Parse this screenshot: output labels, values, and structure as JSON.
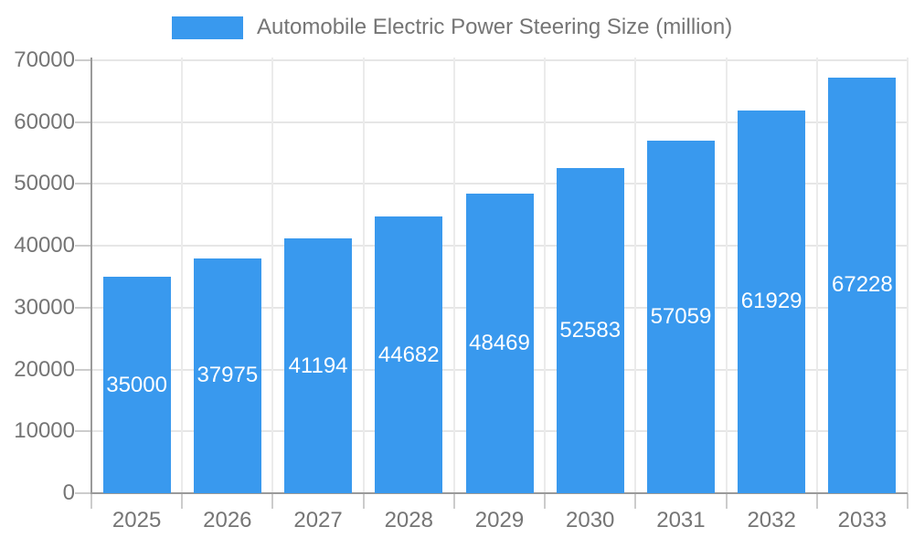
{
  "chart_data": {
    "type": "bar",
    "title": "Automobile Electric Power Steering Size (million)",
    "categories": [
      "2025",
      "2026",
      "2027",
      "2028",
      "2029",
      "2030",
      "2031",
      "2032",
      "2033"
    ],
    "series": [
      {
        "name": "Automobile Electric Power Steering Size (million)",
        "values": [
          35000,
          37975,
          41194,
          44682,
          48469,
          52583,
          57059,
          61929,
          67228
        ]
      }
    ],
    "xlabel": "",
    "ylabel": "",
    "ylim": [
      0,
      70000
    ],
    "y_ticks": [
      0,
      10000,
      20000,
      30000,
      40000,
      50000,
      60000,
      70000
    ],
    "grid": "on",
    "legend_position": "top-center",
    "bar_value_labels": "inside-middle",
    "colors": {
      "bar": "#3999EE",
      "bar_label_text": "#FFFFFF",
      "axis_text": "#757575",
      "grid_horizontal": "#E6E6E6",
      "grid_vertical": "#EBEBEB",
      "axis_line": "#9A9A9A",
      "tick_mark": "#CCCCCC",
      "background": "#FFFFFF"
    }
  }
}
